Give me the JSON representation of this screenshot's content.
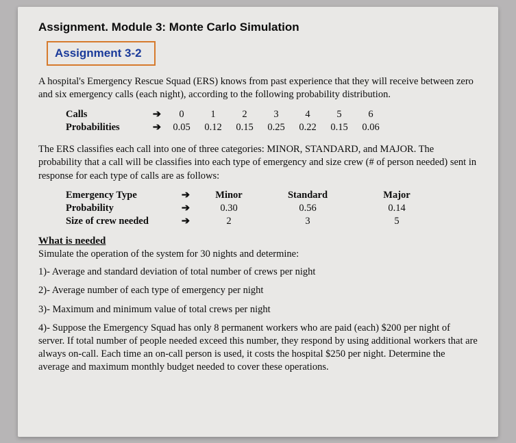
{
  "module_title": "Assignment. Module 3: Monte Carlo Simulation",
  "assignment_label": "Assignment 3-2",
  "intro": "A hospital's Emergency Rescue Squad (ERS) knows from past experience that they will receive between zero and six emergency calls (each night), according to the following probability distribution.",
  "dist": {
    "row1_label": "Calls",
    "row2_label": "Probabilities",
    "arrow": "➔",
    "calls": [
      "0",
      "1",
      "2",
      "3",
      "4",
      "5",
      "6"
    ],
    "probs": [
      "0.05",
      "0.12",
      "0.15",
      "0.25",
      "0.22",
      "0.15",
      "0.06"
    ]
  },
  "classify_para": "The ERS classifies each call into one of three categories: MINOR, STANDARD, and MAJOR. The probability that a call will be classifies into each type of emergency and size crew (# of person needed) sent in response for each type of calls are as follows:",
  "type": {
    "labels": [
      "Emergency Type",
      "Probability",
      "Size of crew needed"
    ],
    "arrow": "➔",
    "cols": [
      "Minor",
      "Standard",
      "Major"
    ],
    "prob": [
      "0.30",
      "0.56",
      "0.14"
    ],
    "crew": [
      "2",
      "3",
      "5"
    ]
  },
  "what_needed": "What is needed",
  "simulate_line": "Simulate the operation of the system for 30 nights and determine:",
  "q1": "1)- Average and standard deviation of total number of crews per night",
  "q2": "2)- Average number of each type of emergency per night",
  "q3": "3)- Maximum and minimum value of total crews per night",
  "q4": "4)- Suppose the Emergency Squad has only 8 permanent workers who are paid (each) $200 per night of server. If total number of people needed exceed this number, they respond by using additional workers that are always on-call. Each time an on-call person is used, it costs the hospital $250 per night. Determine the average and maximum monthly budget needed to cover these operations.",
  "colors": {
    "page_bg": "#e9e8e6",
    "outer_bg": "#b7b5b6",
    "box_border": "#d67a2c",
    "assignment_text": "#1a3a9a",
    "body_text": "#0d0d0d"
  },
  "fonts": {
    "heading_family": "Arial",
    "body_family": "Georgia",
    "heading_size_pt": 13,
    "body_size_pt": 11
  }
}
